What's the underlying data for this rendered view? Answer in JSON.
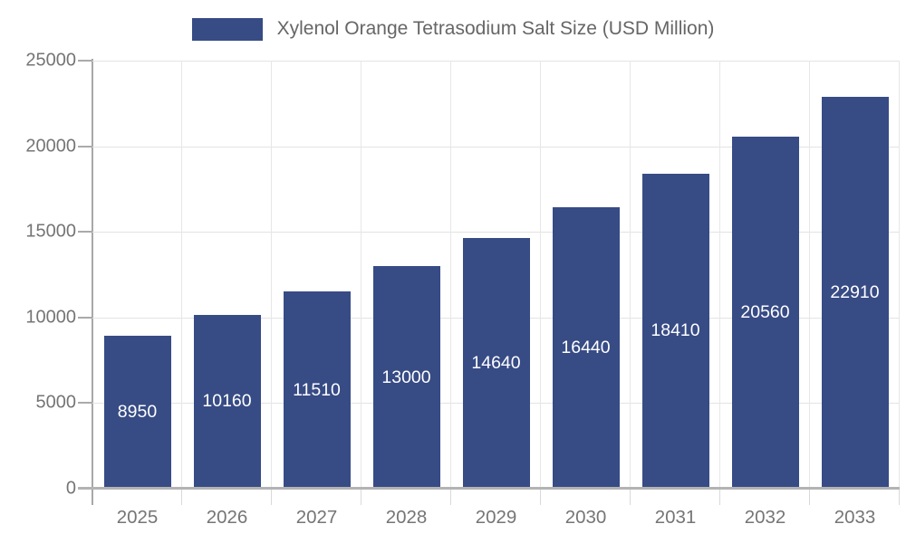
{
  "chart_data": {
    "type": "bar",
    "title": "Xylenol Orange Tetrasodium Salt Size (USD Million)",
    "categories": [
      "2025",
      "2026",
      "2027",
      "2028",
      "2029",
      "2030",
      "2031",
      "2032",
      "2033"
    ],
    "values": [
      8950,
      10160,
      11510,
      13000,
      14640,
      16440,
      18410,
      20560,
      22910
    ],
    "xlabel": "",
    "ylabel": "",
    "ylim": [
      0,
      25000
    ],
    "yticks": [
      0,
      5000,
      10000,
      15000,
      20000,
      25000
    ],
    "grid": true,
    "legend_position": "top-center",
    "value_label_position": "inside-center",
    "colors": {
      "bar": "#374b85",
      "bar_value_text": "#ffffff",
      "legend_text": "#666666",
      "axis_text": "#757575",
      "gridline": "#e3e3e3",
      "axis_line": "#a8a8a8",
      "background": "#ffffff"
    }
  }
}
